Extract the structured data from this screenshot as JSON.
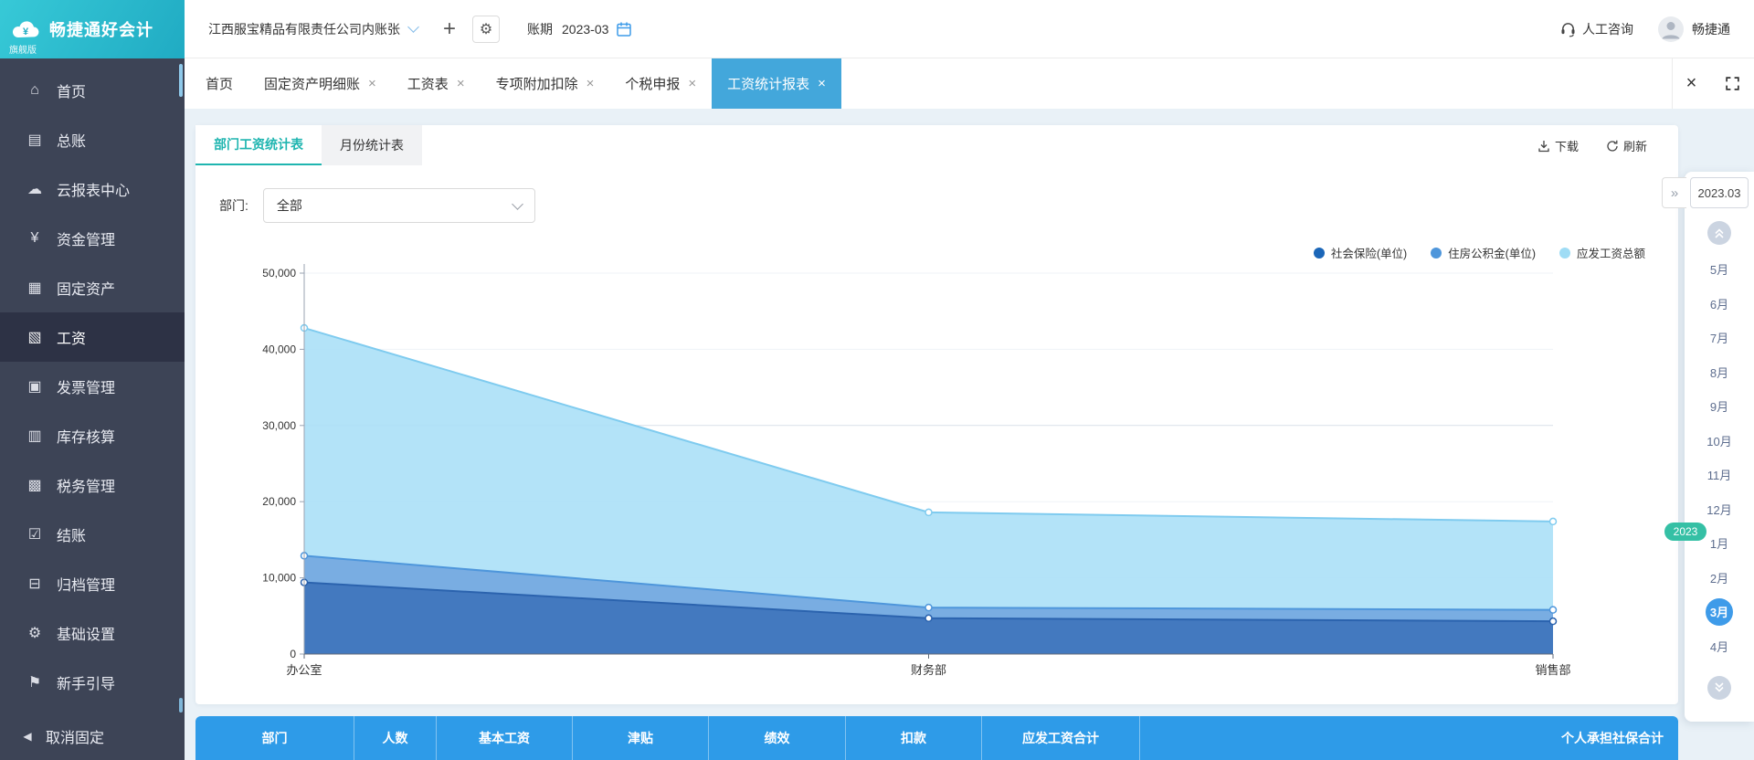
{
  "colors": {
    "brand_teal": "#2BBECE",
    "sidebar_bg": "#3D4456",
    "sidebar_active_bg": "#2D3245",
    "active_tab_blue": "#43A7DB",
    "subtab_teal": "#1FB5B0",
    "table_header_blue": "#2E9BE8",
    "month_active_blue": "#3E9BE9",
    "year_badge_teal": "#35C0A5",
    "content_bg": "#E9F1F7"
  },
  "logo": {
    "title": "畅捷通好会计",
    "edition": "旗舰版"
  },
  "topbar": {
    "company": "江西服宝精品有限责任公司内账张",
    "period_label": "账期",
    "period_value": "2023-03",
    "support_label": "人工咨询",
    "user_name": "畅捷通"
  },
  "sidebar": {
    "items": [
      {
        "label": "首页",
        "icon": "home-icon",
        "active": false
      },
      {
        "label": "总账",
        "icon": "general-ledger-icon",
        "active": false
      },
      {
        "label": "云报表中心",
        "icon": "cloud-report-icon",
        "active": false
      },
      {
        "label": "资金管理",
        "icon": "funds-icon",
        "active": false
      },
      {
        "label": "固定资产",
        "icon": "fixed-assets-icon",
        "active": false
      },
      {
        "label": "工资",
        "icon": "salary-icon",
        "active": true
      },
      {
        "label": "发票管理",
        "icon": "invoice-icon",
        "active": false
      },
      {
        "label": "库存核算",
        "icon": "inventory-icon",
        "active": false
      },
      {
        "label": "税务管理",
        "icon": "tax-icon",
        "active": false
      },
      {
        "label": "结账",
        "icon": "closing-icon",
        "active": false
      },
      {
        "label": "归档管理",
        "icon": "archive-icon",
        "active": false
      },
      {
        "label": "基础设置",
        "icon": "settings-icon",
        "active": false
      },
      {
        "label": "新手引导",
        "icon": "guide-icon",
        "active": false
      }
    ],
    "unpin_label": "取消固定"
  },
  "tabs": [
    {
      "label": "首页",
      "closable": false,
      "active": false
    },
    {
      "label": "固定资产明细账",
      "closable": true,
      "active": false
    },
    {
      "label": "工资表",
      "closable": true,
      "active": false
    },
    {
      "label": "专项附加扣除",
      "closable": true,
      "active": false
    },
    {
      "label": "个税申报",
      "closable": true,
      "active": false
    },
    {
      "label": "工资统计报表",
      "closable": true,
      "active": true
    }
  ],
  "report": {
    "subtabs": [
      {
        "label": "部门工资统计表",
        "active": true
      },
      {
        "label": "月份统计表",
        "active": false
      }
    ],
    "download_label": "下载",
    "refresh_label": "刷新",
    "filter_label": "部门:",
    "filter_value": "全部"
  },
  "chart_data": {
    "type": "area",
    "title": "",
    "categories": [
      "办公室",
      "财务部",
      "销售部"
    ],
    "series": [
      {
        "name": "社会保险(单位)",
        "values": [
          9400,
          4700,
          4300
        ],
        "dot": "#1B66B8",
        "color": "#2B63AE",
        "fill": "#3F74BC",
        "fill_opacity": 0.92
      },
      {
        "name": "住房公积金(单位)",
        "values": [
          12900,
          6100,
          5800
        ],
        "dot": "#4E96DB",
        "color": "#4E96DB",
        "fill": "#6FA3DE",
        "fill_opacity": 0.85
      },
      {
        "name": "应发工资总额",
        "values": [
          42800,
          18600,
          17400
        ],
        "dot": "#9FDCF5",
        "color": "#7FCBEF",
        "fill": "#ABE0F7",
        "fill_opacity": 0.9
      }
    ],
    "ylim": [
      0,
      50000
    ],
    "yticks": [
      "0",
      "10,000",
      "20,000",
      "30,000",
      "40,000",
      "50,000"
    ],
    "xlabel": "",
    "ylabel": "",
    "legend_position": "top-right",
    "grid": true
  },
  "table": {
    "headers": [
      "部门",
      "人数",
      "基本工资",
      "津贴",
      "绩效",
      "扣款",
      "应发工资合计",
      "个人承担社保合计"
    ]
  },
  "datepanel": {
    "collapse": "»",
    "current": "2023.03",
    "year_badge": "2023",
    "months": [
      "5月",
      "6月",
      "7月",
      "8月",
      "9月",
      "10月",
      "11月",
      "12月",
      "1月",
      "2月",
      "3月",
      "4月"
    ],
    "active_month": "3月"
  }
}
